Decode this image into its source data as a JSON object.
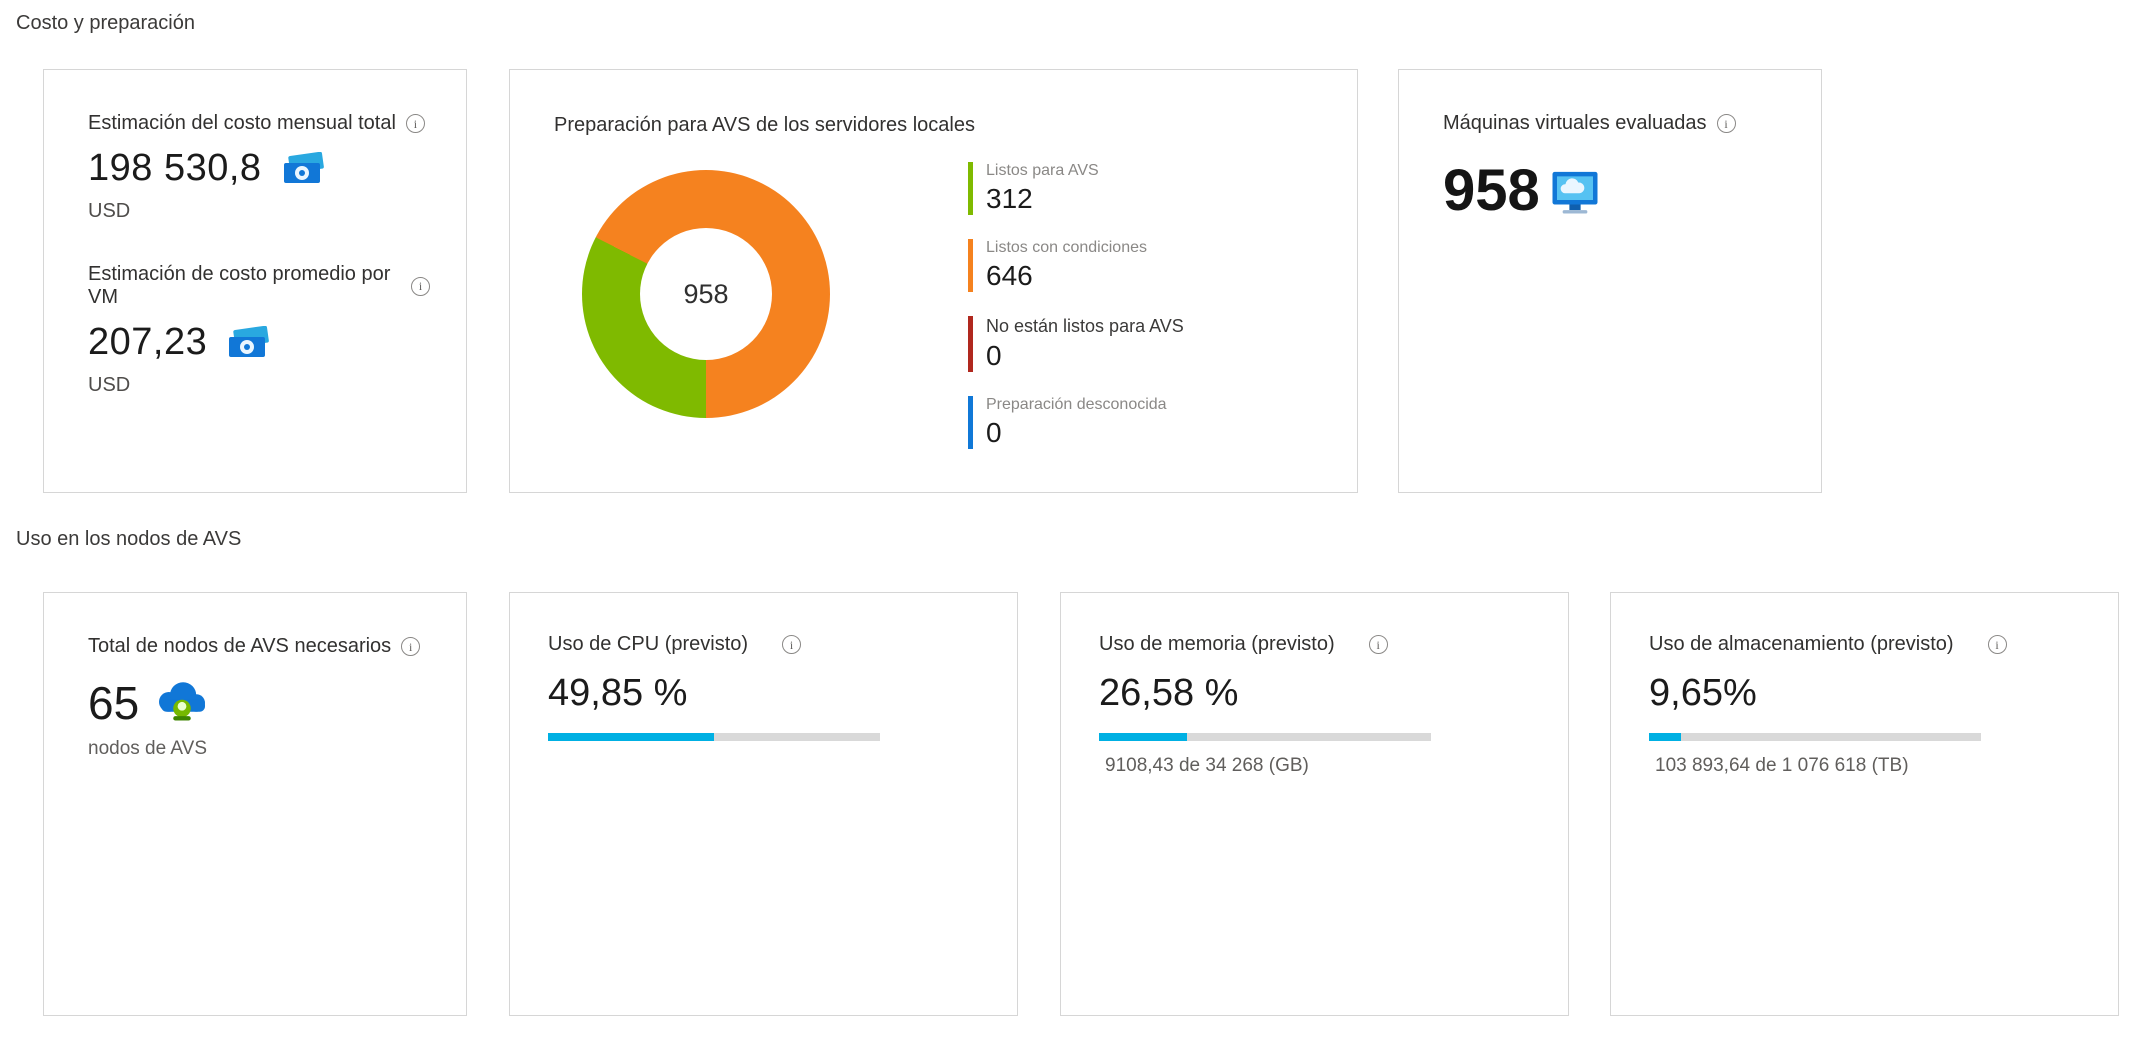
{
  "page": {
    "section_cost_title": "Costo y preparación",
    "section_usage_title": "Uso en los nodos de AVS"
  },
  "cost_card": {
    "monthly_label": "Estimación del costo mensual total",
    "monthly_value": "198 530,8",
    "monthly_unit": "USD",
    "per_vm_label": "Estimación de costo promedio por VM",
    "per_vm_value": "207,23",
    "per_vm_unit": "USD"
  },
  "readiness_card": {
    "title": "Preparación para AVS de los servidores locales",
    "donut_total": "958",
    "legend": [
      {
        "label": "Listos para AVS",
        "value": 312,
        "color": "#7fba00"
      },
      {
        "label": "Listos con condiciones",
        "value": 646,
        "color": "#f5821f"
      },
      {
        "label": "No están listos para AVS",
        "value": 0,
        "color": "#b0281e"
      },
      {
        "label": "Preparación desconocida",
        "value": 0,
        "color": "#1078d7"
      }
    ]
  },
  "vms_card": {
    "title": "Máquinas virtuales evaluadas",
    "value": "958"
  },
  "nodes_card": {
    "title": "Total de nodos de AVS necesarios",
    "value": "65",
    "unit": "nodos de AVS"
  },
  "cpu_card": {
    "title": "Uso de CPU (previsto)",
    "value": "49,85 %",
    "percent": 49.85
  },
  "memory_card": {
    "title": "Uso de memoria (previsto)",
    "value": "26,58 %",
    "percent": 26.58,
    "detail": "9108,43 de 34 268 (GB)"
  },
  "storage_card": {
    "title": "Uso de almacenamiento (previsto)",
    "value": "9,65%",
    "percent": 9.65,
    "detail": "103 893,64 de 1 076 618 (TB)"
  },
  "colors": {
    "progress_fill": "#00b0e3",
    "progress_track": "#d9d9d9"
  },
  "icons": {
    "info": "info-icon",
    "money": "money-icon",
    "vm": "vm-monitor-icon",
    "node": "avs-node-cloud-icon"
  }
}
